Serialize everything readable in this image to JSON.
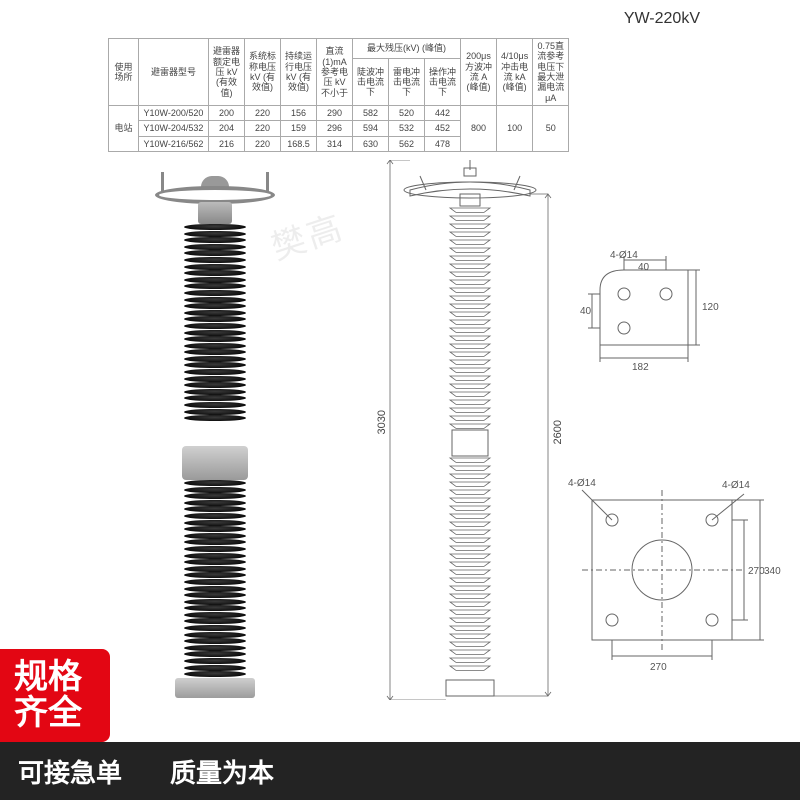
{
  "title": "YW-220kV",
  "table": {
    "header_row1": [
      "使用场所",
      "避雷器型号",
      "避雷器额定电压 kV (有效值)",
      "系统标称电压 kV (有效值)",
      "持续运行电压 kV (有效值)",
      "直流 (1)mA 参考电压 kV 不小于",
      "最大残压(kV) (峰值)",
      "",
      "",
      "200μs 方波冲流 A (峰值)",
      "4/10μs 冲击电流 kA (峰值)",
      "0.75直流参考电压下最大泄漏电流 μA"
    ],
    "header_row2": [
      "",
      "",
      "",
      "",
      "",
      "",
      "陡波冲击电流下",
      "雷电冲击电流下",
      "操作冲击电流下",
      "",
      "",
      ""
    ],
    "rows": [
      [
        "电站",
        "Y10W-200/520",
        "200",
        "220",
        "156",
        "290",
        "582",
        "520",
        "442",
        "800",
        "100",
        "50"
      ],
      [
        "",
        "Y10W-204/532",
        "204",
        "220",
        "159",
        "296",
        "594",
        "532",
        "452",
        "",
        "",
        ""
      ],
      [
        "",
        "Y10W-216/562",
        "216",
        "220",
        "168.5",
        "314",
        "630",
        "562",
        "478",
        "",
        "",
        ""
      ]
    ]
  },
  "photo": {
    "upper_discs": 30,
    "lower_discs": 30,
    "disc_color_dark": "#111111",
    "metal_color": "#9a9a9a"
  },
  "drawing": {
    "total_height_label": "3030",
    "inner_height_label": "2600",
    "outline_color": "#666666"
  },
  "flange_top": {
    "hole_note": "4-Ø14",
    "dim_a": "40",
    "dim_b": "40",
    "dim_h": "120",
    "dim_w": "182"
  },
  "flange_bot": {
    "hole_note_top": "4-Ø14",
    "hole_note_side": "4-Ø14",
    "dim_inner": "270",
    "dim_outer": "340",
    "dim_inner_w": "270"
  },
  "overlay": {
    "left_line1": "规格",
    "left_line2": "齐全",
    "bottom_tag1": "可接急单",
    "bottom_tag2": "质量为本",
    "accent_color": "#e30613",
    "bar_color": "#232323"
  },
  "watermark": "樊高"
}
